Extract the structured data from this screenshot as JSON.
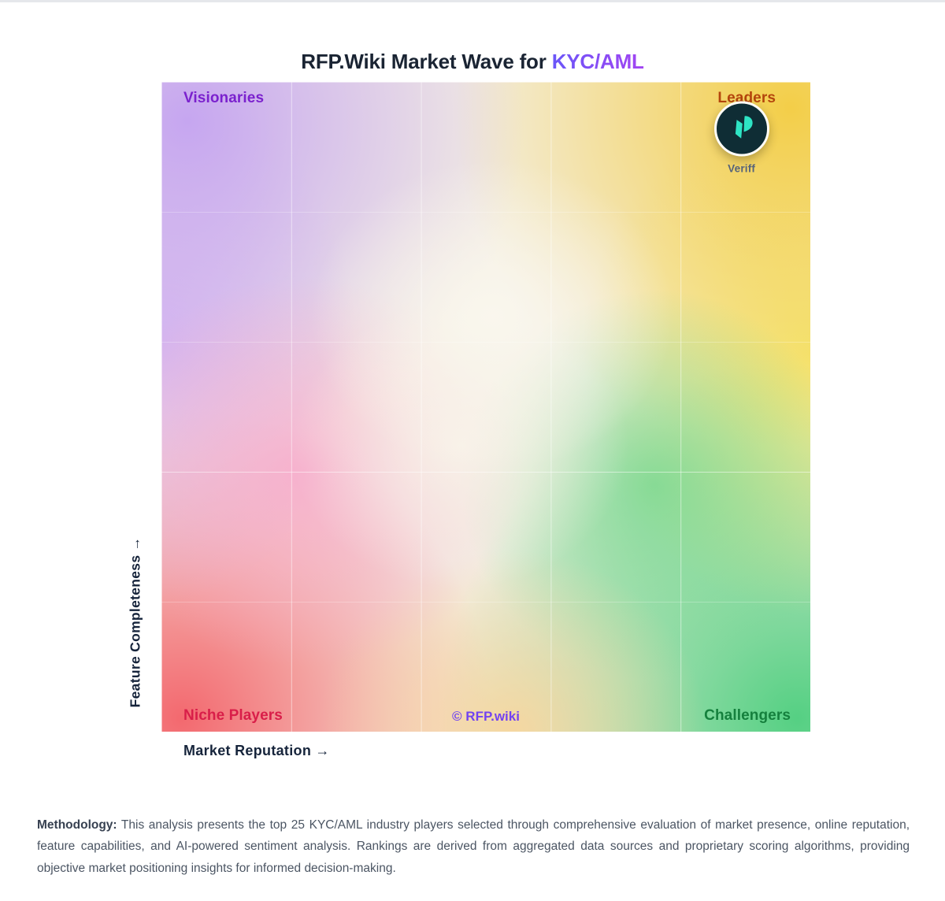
{
  "title": {
    "prefix": "RFP.Wiki Market Wave for",
    "highlight": "KYC/AML",
    "prefix_color": "#1A2433",
    "highlight_gradient": [
      "#6A56F8",
      "#A344F2"
    ]
  },
  "chart": {
    "x_axis_label": "Market Reputation →",
    "y_axis_label": "Feature Completeness →",
    "watermark": "© RFP.wiki",
    "grid": {
      "columns": 5,
      "rows": 5,
      "line_color": "rgba(255,255,255,0.5)"
    },
    "quadrants": [
      {
        "id": "visionaries",
        "label": "Visionaries",
        "position": "top-left",
        "color": "#7B21CE"
      },
      {
        "id": "leaders",
        "label": "Leaders",
        "position": "top-right",
        "color": "#B4450C"
      },
      {
        "id": "niche_players",
        "label": "Niche Players",
        "position": "bottom-left",
        "color": "#D91E49"
      },
      {
        "id": "challengers",
        "label": "Challengers",
        "position": "bottom-right",
        "color": "#15803D"
      }
    ],
    "corner_colors": {
      "top_left": "#C6A6F0",
      "top_right": "#F3CE48",
      "bottom_left": "#F3696F",
      "bottom_right": "#55D083"
    },
    "vendors": [
      {
        "name": "Veriff",
        "quadrant": "Leaders",
        "left_percent": 89.4,
        "top_percent": 8.6,
        "logo_bg": "#0F2D35",
        "logo_color": "#2EE4C4",
        "logo_icon": "veriff-ribbon-v-icon"
      }
    ]
  },
  "chart_data": {
    "type": "scatter",
    "title": "RFP.Wiki Market Wave for KYC/AML",
    "xlabel": "Market Reputation",
    "ylabel": "Feature Completeness",
    "xlim": [
      0,
      1
    ],
    "ylim": [
      0,
      1
    ],
    "grid": "5x5, white lines, on",
    "legend_position": "none",
    "quadrant_labels": {
      "top_left": "Visionaries",
      "top_right": "Leaders",
      "bottom_left": "Niche Players",
      "bottom_right": "Challengers"
    },
    "points": [
      {
        "label": "Veriff",
        "x": 0.89,
        "y": 0.91,
        "quadrant": "Leaders"
      }
    ],
    "watermark": "© RFP.wiki"
  },
  "methodology": {
    "heading": "Methodology:",
    "body": "This analysis presents the top 25 KYC/AML industry players selected through comprehensive evaluation of market presence, online reputation, feature capabilities, and AI-powered sentiment analysis. Rankings are derived from aggregated data sources and proprietary scoring algorithms, providing objective market positioning insights for informed decision-making."
  }
}
